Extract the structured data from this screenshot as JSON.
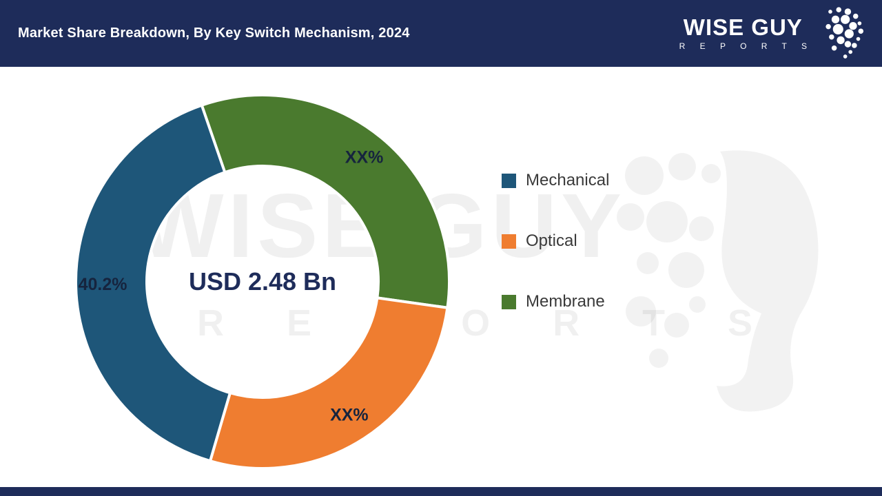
{
  "header": {
    "title": "Market Share Breakdown, By Key Switch Mechanism, 2024",
    "logo": {
      "line1": "WISE GUY",
      "line2": "R E P O R T S"
    }
  },
  "watermark": {
    "line1": "WISE GUY",
    "line2": "R E P O R T S"
  },
  "chart_data": {
    "type": "pie",
    "subtype": "donut",
    "title": "Market Share Breakdown, By Key Switch Mechanism, 2024",
    "center_label": "USD 2.48 Bn",
    "start_angle_deg": 109,
    "label_color": "#16243e",
    "slices": [
      {
        "name": "Membrane",
        "value": 32.5,
        "display": "XX%",
        "color": "#4a7a2e"
      },
      {
        "name": "Optical",
        "value": 27.3,
        "display": "XX%",
        "color": "#ef7d30"
      },
      {
        "name": "Mechanical",
        "value": 40.2,
        "display": "40.2%",
        "color": "#1e5679"
      }
    ],
    "legend_position": "right",
    "legend": [
      {
        "label": "Mechanical",
        "color": "#1e5679"
      },
      {
        "label": "Optical",
        "color": "#ef7d30"
      },
      {
        "label": "Membrane",
        "color": "#4a7a2e"
      }
    ]
  },
  "colors": {
    "header_bg": "#1e2c5a",
    "footer_bg": "#1e2c5a",
    "background": "#ffffff"
  }
}
